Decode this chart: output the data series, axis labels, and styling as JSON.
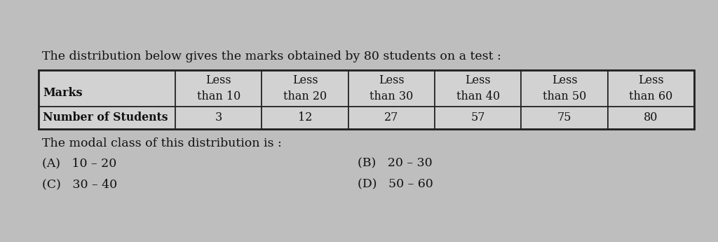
{
  "title": "The distribution below gives the marks obtained by 80 students on a test :",
  "col0_header_line1": "Marks",
  "col_headers": [
    "Less\nthan 10",
    "Less\nthan 20",
    "Less\nthan 30",
    "Less\nthan 40",
    "Less\nthan 50",
    "Less\nthan 60"
  ],
  "data_row_label": "Number of Students",
  "data_values": [
    "3",
    "12",
    "27",
    "57",
    "75",
    "80"
  ],
  "question": "The modal class of this distribution is :",
  "opt_A": "(A)   10 – 20",
  "opt_B": "(B)   20 – 30",
  "opt_C": "(C)   30 – 40",
  "opt_D": "(D)   50 – 60",
  "bg_color": "#bebebe",
  "table_bg": "#d2d2d2",
  "border_color": "#222222",
  "text_color": "#111111",
  "title_fontsize": 12.5,
  "table_fontsize": 11.5,
  "options_fontsize": 12.5,
  "fig_width": 10.24,
  "fig_height": 3.45,
  "dpi": 100
}
